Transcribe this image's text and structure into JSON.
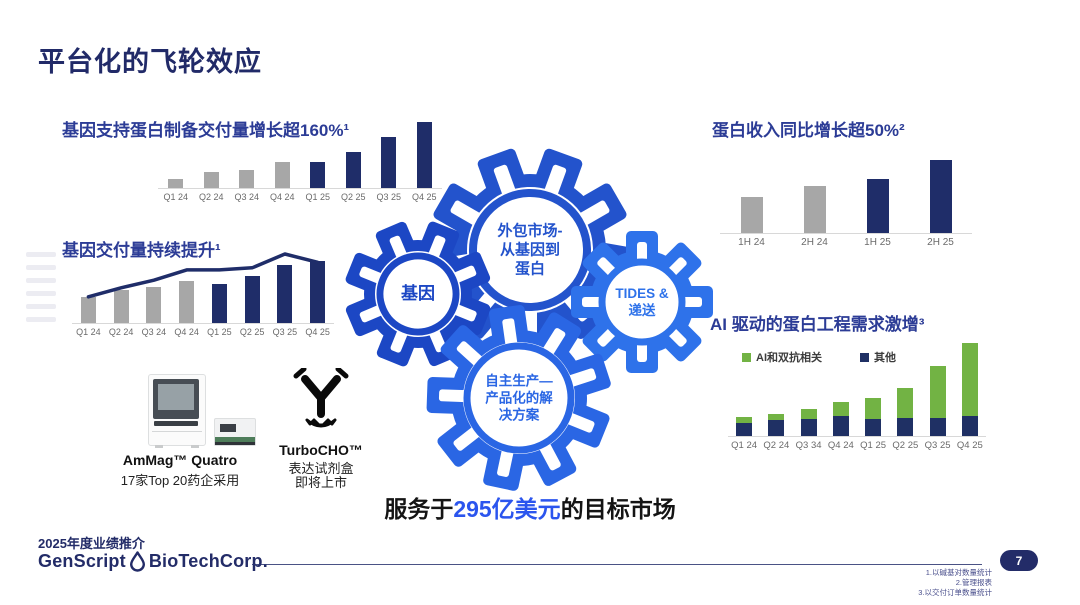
{
  "slide_title": "平台化的飞轮效应",
  "palette": {
    "navy_bar": "#1F2D69",
    "navy_dark": "#232C68",
    "gray_bar": "#A7A7A7",
    "green": "#72B344",
    "chart_title_blue": "#2C3C96",
    "highlight_blue": "#2B55EE",
    "line_navy": "#1F2D69"
  },
  "chart_data": [
    {
      "id": "gene-supported-protein-deliveries",
      "type": "bar",
      "title": "基因支持蛋白制备交付量增长超160%¹",
      "categories": [
        "Q1 24",
        "Q2 24",
        "Q3 24",
        "Q4 24",
        "Q1 25",
        "Q2 25",
        "Q3 25",
        "Q4 25"
      ],
      "values": [
        13,
        24,
        28,
        40,
        40,
        55,
        78,
        100
      ],
      "value_note": "relative index, no y-axis shown; 2024 bars gray, 2025 bars navy",
      "bar_colors": [
        "gray",
        "gray",
        "gray",
        "gray",
        "navy",
        "navy",
        "navy",
        "navy"
      ],
      "xlabel": "",
      "ylabel": "",
      "grid": false
    },
    {
      "id": "gene-deliveries-trend",
      "type": "bar+line",
      "title": "基因交付量持续提升¹",
      "categories": [
        "Q1 24",
        "Q2 24",
        "Q3 24",
        "Q4 24",
        "Q1 25",
        "Q2 25",
        "Q3 25",
        "Q4 25"
      ],
      "bar_values": [
        42,
        53,
        58,
        68,
        63,
        76,
        94,
        100
      ],
      "line_values": [
        38,
        51,
        62,
        77,
        77,
        80,
        100,
        88
      ],
      "value_note": "relative index; faint y-axis numbers present but illegible",
      "bar_colors": [
        "gray",
        "gray",
        "gray",
        "gray",
        "navy",
        "navy",
        "navy",
        "navy"
      ],
      "y_axis_labels_legible": false,
      "xlabel": "",
      "ylabel": "",
      "grid": false
    },
    {
      "id": "protein-revenue-growth",
      "type": "bar",
      "title": "蛋白收入同比增长超50%²",
      "categories": [
        "1H 24",
        "2H 24",
        "1H 25",
        "2H 25"
      ],
      "values": [
        49,
        64,
        74,
        100
      ],
      "value_note": "relative index, no y-axis shown",
      "bar_colors": [
        "gray",
        "gray",
        "navy",
        "navy"
      ],
      "xlabel": "",
      "ylabel": "",
      "grid": false
    },
    {
      "id": "ai-protein-engineering-demand",
      "type": "stacked-bar",
      "title": "AI 驱动的蛋白工程需求激增³",
      "categories": [
        "Q1 24",
        "Q2 24",
        "Q3 34",
        "Q4 24",
        "Q1 25",
        "Q2 25",
        "Q3 25",
        "Q4 25"
      ],
      "series": [
        {
          "name": "其他",
          "color": "#1F3064",
          "values": [
            14,
            17,
            18,
            22,
            18,
            19,
            19,
            22
          ]
        },
        {
          "name": "AI和双抗相关",
          "color": "#72B344",
          "values": [
            6,
            7,
            11,
            15,
            23,
            33,
            56,
            78
          ]
        }
      ],
      "legend": [
        {
          "label": "AI和双抗相关",
          "color": "#72B344"
        },
        {
          "label": "其他",
          "color": "#1F3064"
        }
      ],
      "stack_order": "其他 bottom, AI和双抗相关 top",
      "xlabel": "",
      "ylabel": "",
      "grid": false,
      "legend_position": "top-left"
    }
  ],
  "flywheel": {
    "gears": [
      {
        "id": "outsourcing-market",
        "label_lines": [
          "外包市场-",
          "从基因到",
          "蛋白"
        ],
        "color": "#2353CC"
      },
      {
        "id": "gene",
        "label_lines": [
          "基因"
        ],
        "color": "#1C47C4"
      },
      {
        "id": "tides-delivery",
        "label_lines": [
          "TIDES &",
          "递送"
        ],
        "color": "#2E72EA"
      },
      {
        "id": "inhouse-productized",
        "label_lines": [
          "自主生产—",
          "产品化的解",
          "决方案"
        ],
        "color": "#2A66E4"
      }
    ]
  },
  "products": {
    "ammag": {
      "name": "AmMag™ Quatro",
      "adoption": "17家Top 20药企采用"
    },
    "turbocho": {
      "name": "TurboCHO™",
      "line1": "表达试剂盒",
      "line2": "即将上市"
    }
  },
  "headline": {
    "prefix": "服务于",
    "highlight": "295亿美元",
    "suffix": "的目标市场"
  },
  "footer": {
    "program": "2025年度业绩推介",
    "logo_text_left": "GenScript",
    "logo_text_right": "BioTechCorp.",
    "footnotes": [
      "1.以碱基对数量统计",
      "2.管理报表",
      "3.以交付订单数量统计"
    ],
    "page_number": "7"
  }
}
